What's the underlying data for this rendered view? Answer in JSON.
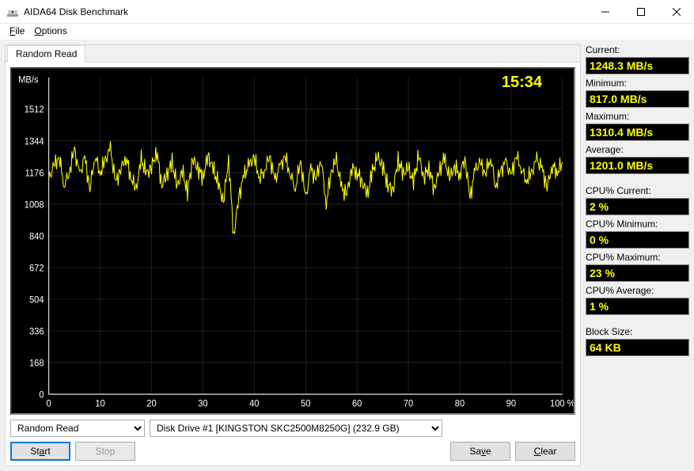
{
  "window": {
    "title": "AIDA64 Disk Benchmark"
  },
  "menu": {
    "file": "File",
    "options": "Options"
  },
  "tab": {
    "label": "Random Read"
  },
  "chart": {
    "type": "line",
    "clock": "15:34",
    "clock_color": "#ffff00",
    "background_color": "#000000",
    "grid_color": "#3a3a3a",
    "series_color": "#ffff00",
    "axis_label_color": "#ffffff",
    "axis_fontsize": 11,
    "ylabel": "MB/s",
    "ylim": [
      0,
      1680
    ],
    "yticks": [
      0,
      168,
      336,
      504,
      672,
      840,
      1008,
      1176,
      1344,
      1512
    ],
    "xlim": [
      0,
      100
    ],
    "xticks": [
      0,
      10,
      20,
      30,
      40,
      50,
      60,
      70,
      80,
      90,
      100
    ],
    "xunit": "%",
    "line_width": 1,
    "series_x": [
      0,
      1,
      2,
      3,
      4,
      5,
      6,
      7,
      8,
      9,
      10,
      11,
      12,
      13,
      14,
      15,
      16,
      17,
      18,
      19,
      20,
      21,
      22,
      23,
      24,
      25,
      26,
      27,
      28,
      29,
      30,
      31,
      32,
      33,
      34,
      35,
      36,
      37,
      38,
      39,
      40,
      41,
      42,
      43,
      44,
      45,
      46,
      47,
      48,
      49,
      50,
      51,
      52,
      53,
      54,
      55,
      56,
      57,
      58,
      59,
      60,
      61,
      62,
      63,
      64,
      65,
      66,
      67,
      68,
      69,
      70,
      71,
      72,
      73,
      74,
      75,
      76,
      77,
      78,
      79,
      80,
      81,
      82,
      83,
      84,
      85,
      86,
      87,
      88,
      89,
      90,
      91,
      92,
      93,
      94,
      95,
      96,
      97,
      98,
      99,
      100
    ],
    "series_y": [
      1140,
      1210,
      1260,
      1110,
      1180,
      1300,
      1160,
      1255,
      1090,
      1270,
      1175,
      1240,
      1300,
      1120,
      1195,
      1260,
      1150,
      1085,
      1245,
      1170,
      1205,
      1290,
      1110,
      1165,
      1230,
      1100,
      1185,
      1070,
      1250,
      1200,
      1150,
      1265,
      1195,
      1115,
      1020,
      1250,
      840,
      1050,
      1160,
      1215,
      1255,
      1150,
      1190,
      1265,
      1130,
      1205,
      1260,
      1170,
      1095,
      1240,
      1035,
      1195,
      1140,
      1250,
      1015,
      1185,
      1240,
      1090,
      1060,
      1205,
      1175,
      1130,
      1055,
      1180,
      1260,
      1210,
      1110,
      1085,
      1240,
      1170,
      1200,
      1125,
      1270,
      1150,
      1205,
      1090,
      1180,
      1250,
      1145,
      1210,
      1165,
      1255,
      1040,
      1190,
      1225,
      1170,
      1260,
      1105,
      1185,
      1230,
      1155,
      1270,
      1200,
      1135,
      1175,
      1245,
      1195,
      1100,
      1215,
      1180,
      1230
    ]
  },
  "controls": {
    "mode_selected": "Random Read",
    "drive_selected": "Disk Drive #1  [KINGSTON SKC2500M8250G]  (232.9 GB)",
    "start": "Start",
    "stop": "Stop",
    "save": "Save",
    "clear": "Clear"
  },
  "stats": [
    {
      "label": "Current:",
      "value": "1248.3 MB/s"
    },
    {
      "label": "Minimum:",
      "value": "817.0 MB/s"
    },
    {
      "label": "Maximum:",
      "value": "1310.4 MB/s"
    },
    {
      "label": "Average:",
      "value": "1201.0 MB/s"
    },
    {
      "label": "CPU% Current:",
      "value": "2 %"
    },
    {
      "label": "CPU% Minimum:",
      "value": "0 %"
    },
    {
      "label": "CPU% Maximum:",
      "value": "23 %"
    },
    {
      "label": "CPU% Average:",
      "value": "1 %"
    },
    {
      "label": "Block Size:",
      "value": "64 KB"
    }
  ],
  "stat_value_color": "#ffff00",
  "stat_bg_color": "#000000"
}
